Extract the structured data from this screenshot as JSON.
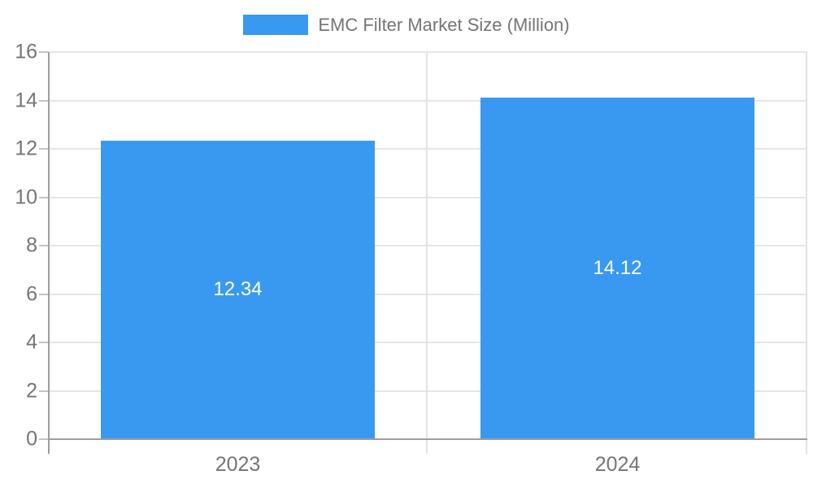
{
  "legend": {
    "label": "EMC Filter Market Size (Million)"
  },
  "chart_data": {
    "type": "bar",
    "title": "EMC Filter Market Size (Million)",
    "categories": [
      "2023",
      "2024"
    ],
    "series": [
      {
        "name": "EMC Filter Market Size (Million)",
        "values": [
          12.34,
          14.12
        ]
      }
    ],
    "value_labels": [
      "12.34",
      "14.12"
    ],
    "xlabel": "",
    "ylabel": "",
    "ylim": [
      0,
      16
    ],
    "yticks": [
      0,
      2,
      4,
      6,
      8,
      10,
      12,
      14,
      16
    ],
    "grid": true,
    "legend_position": "top",
    "bar_width_fraction": 0.72,
    "colors": {
      "bar": "#3999F0",
      "value_label": "#ffffff",
      "text": "#757575",
      "gridline": "#e6e6e6",
      "axis": "#9e9e9e"
    }
  }
}
